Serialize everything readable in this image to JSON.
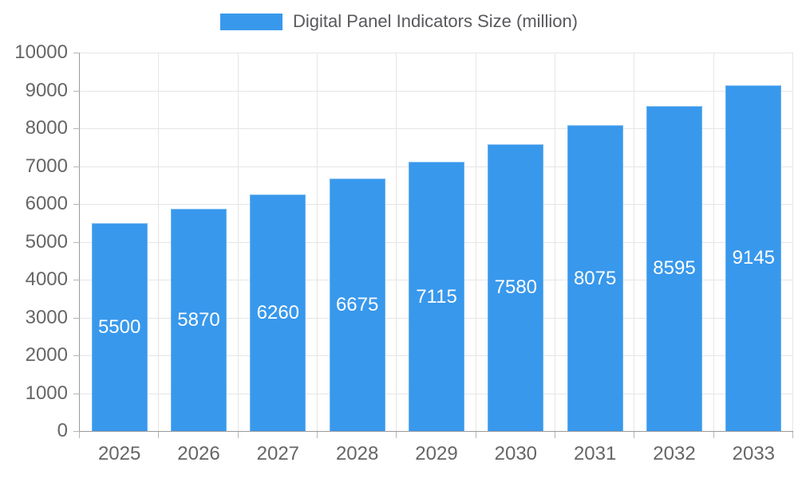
{
  "chart_data": {
    "type": "bar",
    "title": "Digital Panel Indicators Size (million)",
    "categories": [
      "2025",
      "2026",
      "2027",
      "2028",
      "2029",
      "2030",
      "2031",
      "2032",
      "2033"
    ],
    "values": [
      5500,
      5870,
      6260,
      6675,
      7115,
      7580,
      8075,
      8595,
      9145
    ],
    "series": [
      {
        "name": "Digital Panel Indicators Size (million)",
        "values": [
          5500,
          5870,
          6260,
          6675,
          7115,
          7580,
          8075,
          8595,
          9145
        ]
      }
    ],
    "xlabel": "",
    "ylabel": "",
    "ylim": [
      0,
      10000
    ],
    "ytick_interval": 1000,
    "ytick_labels": [
      "0",
      "1000",
      "2000",
      "3000",
      "4000",
      "5000",
      "6000",
      "7000",
      "8000",
      "9000",
      "10000"
    ],
    "grid": true,
    "legend_position": "top",
    "value_labels_shown": true,
    "colors": {
      "bar": "#3898EC",
      "grid": "#E5E5E5",
      "axis": "#9A9A9A",
      "tick": "#B5B5B5",
      "tick_label": "#666666",
      "value_label": "#FFFFFF",
      "legend_text": "#58585D",
      "background": "#FFFFFF"
    }
  }
}
